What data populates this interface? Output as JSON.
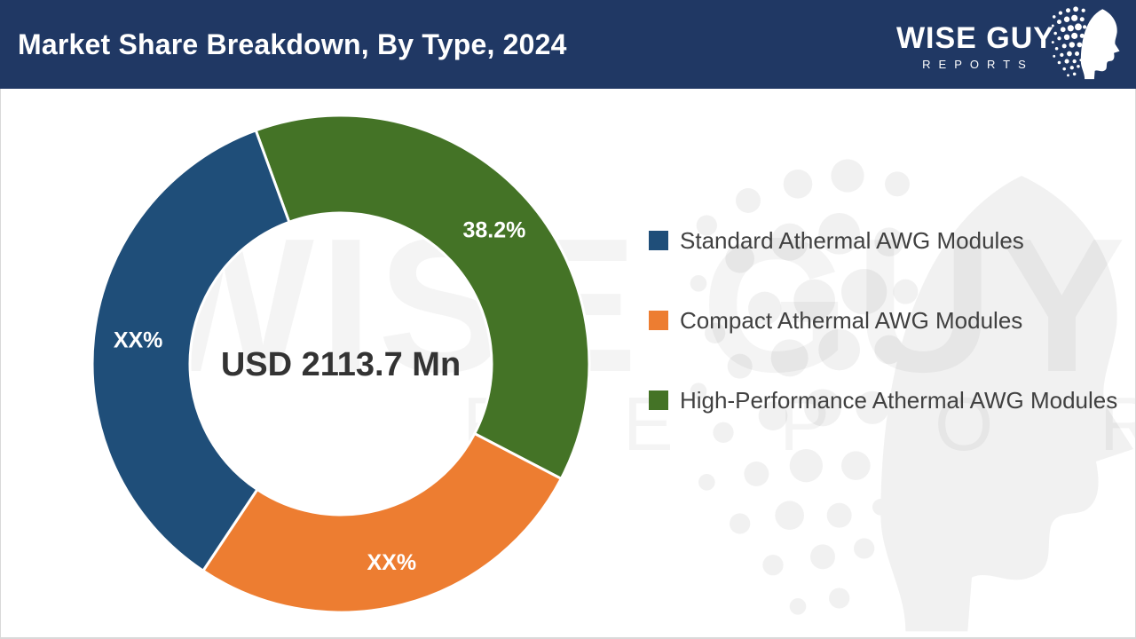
{
  "header": {
    "title": "Market Share Breakdown, By Type, 2024"
  },
  "logo": {
    "line1": "WISE GUY",
    "line2": "REPORTS",
    "face_icon": "dotted-face-profile"
  },
  "colors": {
    "header_bar": "#203864",
    "blue": "#1F4E79",
    "orange": "#ED7D31",
    "green": "#447326",
    "legend_text": "#404040",
    "center_text": "#333333",
    "border": "#D9D9D9"
  },
  "chart_data": {
    "type": "pie",
    "donut": true,
    "title": "Market Share Breakdown, By Type, 2024",
    "center_text": "USD 2113.7 Mn",
    "legend_position": "right",
    "rotation_deg": -20,
    "segments": [
      {
        "name": "Standard Athermal AWG Modules",
        "color": "#1F4E79",
        "value_label": "XX%",
        "percent_est": 35.1
      },
      {
        "name": "Compact Athermal AWG Modules",
        "color": "#ED7D31",
        "value_label": "XX%",
        "percent_est": 26.7
      },
      {
        "name": "High-Performance Athermal AWG Modules",
        "color": "#447326",
        "value_label": "38.2%",
        "percent_est": 38.2
      }
    ],
    "draw_order": [
      2,
      1,
      0
    ]
  }
}
